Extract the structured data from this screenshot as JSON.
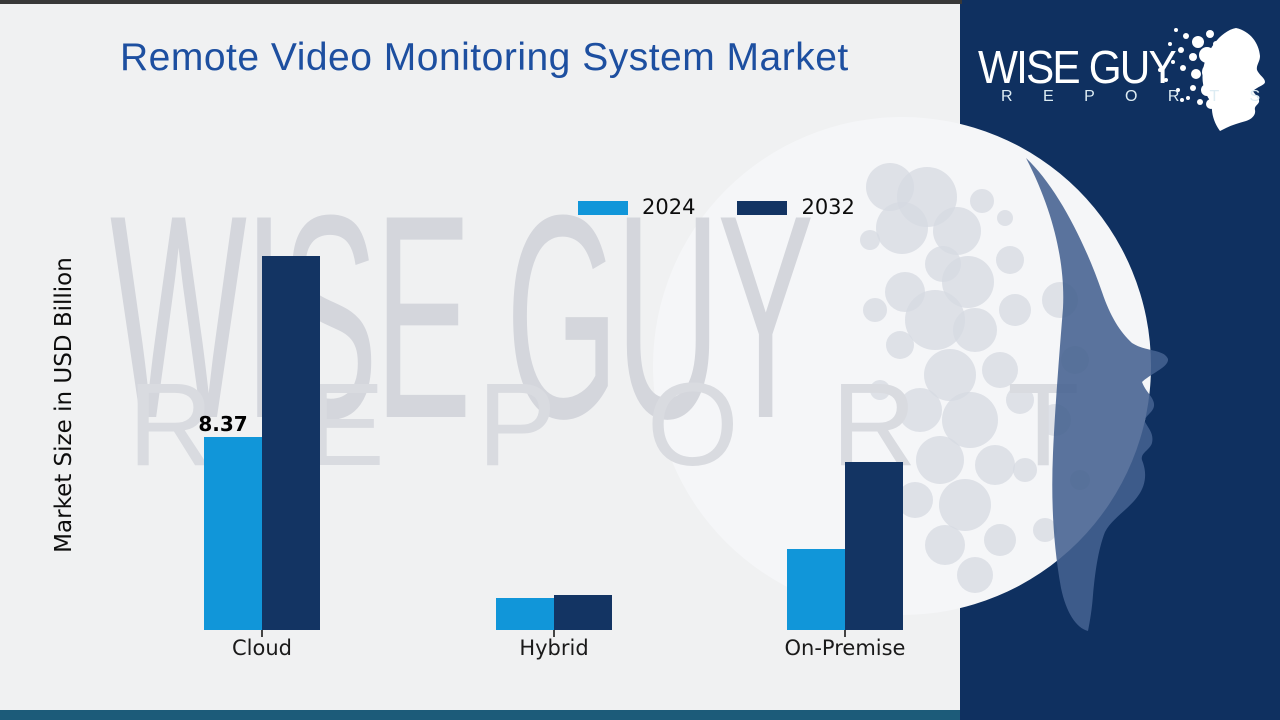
{
  "page": {
    "background": "#f0f1f2",
    "top_strip_color": "#383838",
    "bottom_bar_color": "#1c5b79",
    "watermark_color": "#d4d6dc"
  },
  "header": {
    "title": "Remote Video Monitoring System Market",
    "title_color": "#1d4fa0"
  },
  "watermark": {
    "line1": "WISE GUY",
    "line2": "R E P O R T S"
  },
  "logo": {
    "line1": "WISE GUY",
    "line2": "R E P O R T S",
    "panel_color": "#0f3060",
    "face_color": "#44618f",
    "icon": "dotted-face-profile-icon"
  },
  "chart_data": {
    "type": "bar",
    "title": "Remote Video Monitoring System Market",
    "categories": [
      "Cloud",
      "Hybrid",
      "On-Premise"
    ],
    "series": [
      {
        "name": "2024",
        "color": "#1196d9",
        "values": [
          8.37,
          1.4,
          3.5
        ]
      },
      {
        "name": "2032",
        "color": "#133463",
        "values": [
          16.2,
          1.5,
          7.3
        ]
      }
    ],
    "ylabel": "Market Size in USD Billion",
    "xlabel": "",
    "data_labels": [
      {
        "series": "2024",
        "category": "Cloud",
        "text": "8.37"
      }
    ],
    "legend_position": "top-center",
    "grid": false,
    "ylim": [
      0,
      18
    ]
  }
}
